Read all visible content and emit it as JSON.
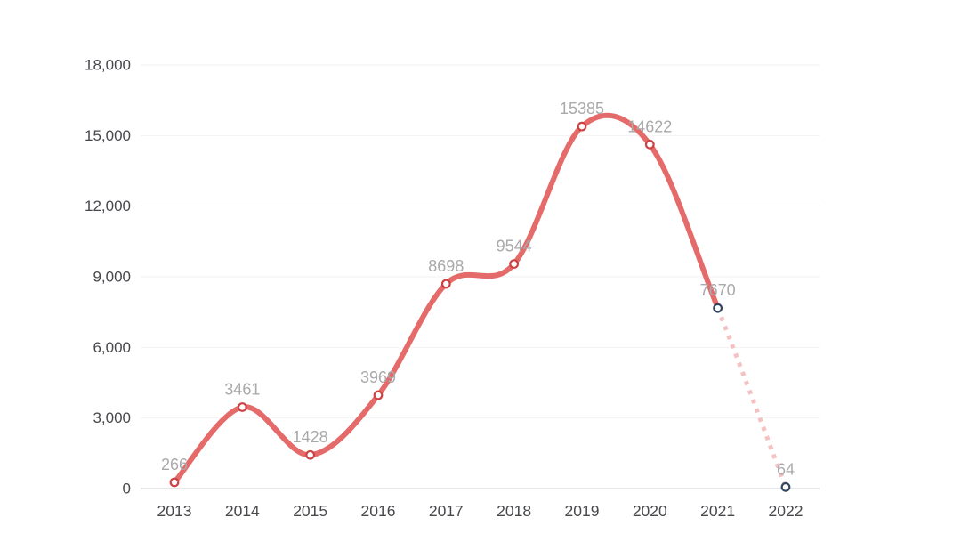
{
  "chart_data": {
    "type": "line",
    "title": "",
    "xlabel": "",
    "ylabel": "",
    "legend": "none",
    "grid": "horizontal",
    "categories": [
      "2013",
      "2014",
      "2015",
      "2016",
      "2017",
      "2018",
      "2019",
      "2020",
      "2021",
      "2022"
    ],
    "series": [
      {
        "name": "yearly-values",
        "values": [
          266,
          3461,
          1428,
          3969,
          8698,
          9544,
          15385,
          14622,
          7670,
          64
        ]
      }
    ],
    "point_labels": [
      "266",
      "3461",
      "1428",
      "3969",
      "8698",
      "9544",
      "15385",
      "14622",
      "7670",
      "64"
    ],
    "y_ticks": [
      {
        "value": 0,
        "label": "0"
      },
      {
        "value": 3000,
        "label": "3,000"
      },
      {
        "value": 6000,
        "label": "6,000"
      },
      {
        "value": 9000,
        "label": "9,000"
      },
      {
        "value": 12000,
        "label": "12,000"
      },
      {
        "value": 15000,
        "label": "15,000"
      },
      {
        "value": 18000,
        "label": "18,000"
      }
    ],
    "ylim": [
      0,
      18000
    ],
    "solid_segment_end_index": 8,
    "dashed_segment": {
      "from": "2021",
      "to": "2022",
      "style": "dotted"
    },
    "dark_marker_indices": [
      8,
      9
    ],
    "colors": {
      "line": "#e56b6b",
      "line_dotted": "#f4c2c3",
      "marker_fill": "#ffffff",
      "marker_stroke": "#cc4243",
      "marker_stroke_dark": "#34465f",
      "point_label": "#a9a9ab",
      "axis_label": "#47484c",
      "gridline": "#f2f2f4",
      "baseline": "#dfdfe3",
      "background": "#ffffff"
    }
  }
}
